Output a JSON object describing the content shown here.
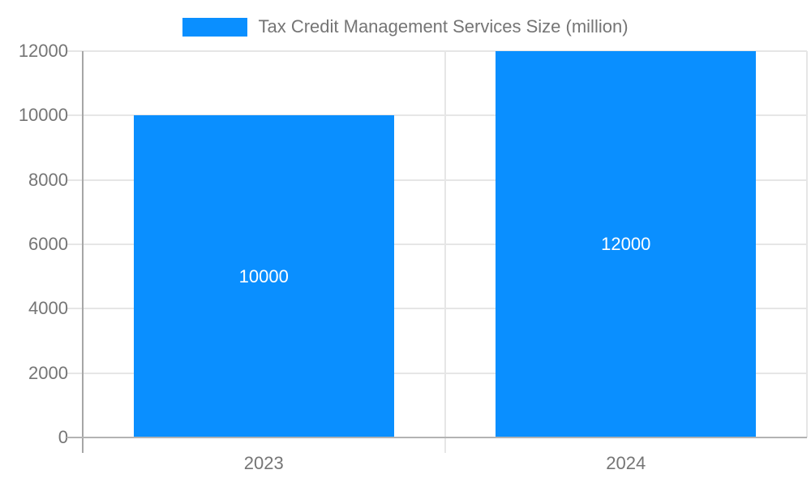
{
  "chart_data": {
    "type": "bar",
    "title": "Tax Credit Management Services Size (million)",
    "categories": [
      "2023",
      "2024"
    ],
    "values": [
      10000,
      12000
    ],
    "bar_value_labels": [
      "10000",
      "12000"
    ],
    "ylim": [
      0,
      12000
    ],
    "yticks": [
      0,
      2000,
      4000,
      6000,
      8000,
      10000,
      12000
    ],
    "ytick_labels": [
      "0",
      "2000",
      "4000",
      "6000",
      "8000",
      "10000",
      "12000"
    ],
    "grid": true,
    "legend_position": "top-center",
    "bar_width_fraction": 0.72,
    "colors": {
      "bar": "#0a8fff",
      "grid": "#e6e6e6",
      "axis": "#a6a6a6",
      "baseline": "#b3b3b3",
      "below_tick": "#dddddd",
      "text": "#757575",
      "bar_label": "#ffffff",
      "background": "#ffffff"
    }
  }
}
